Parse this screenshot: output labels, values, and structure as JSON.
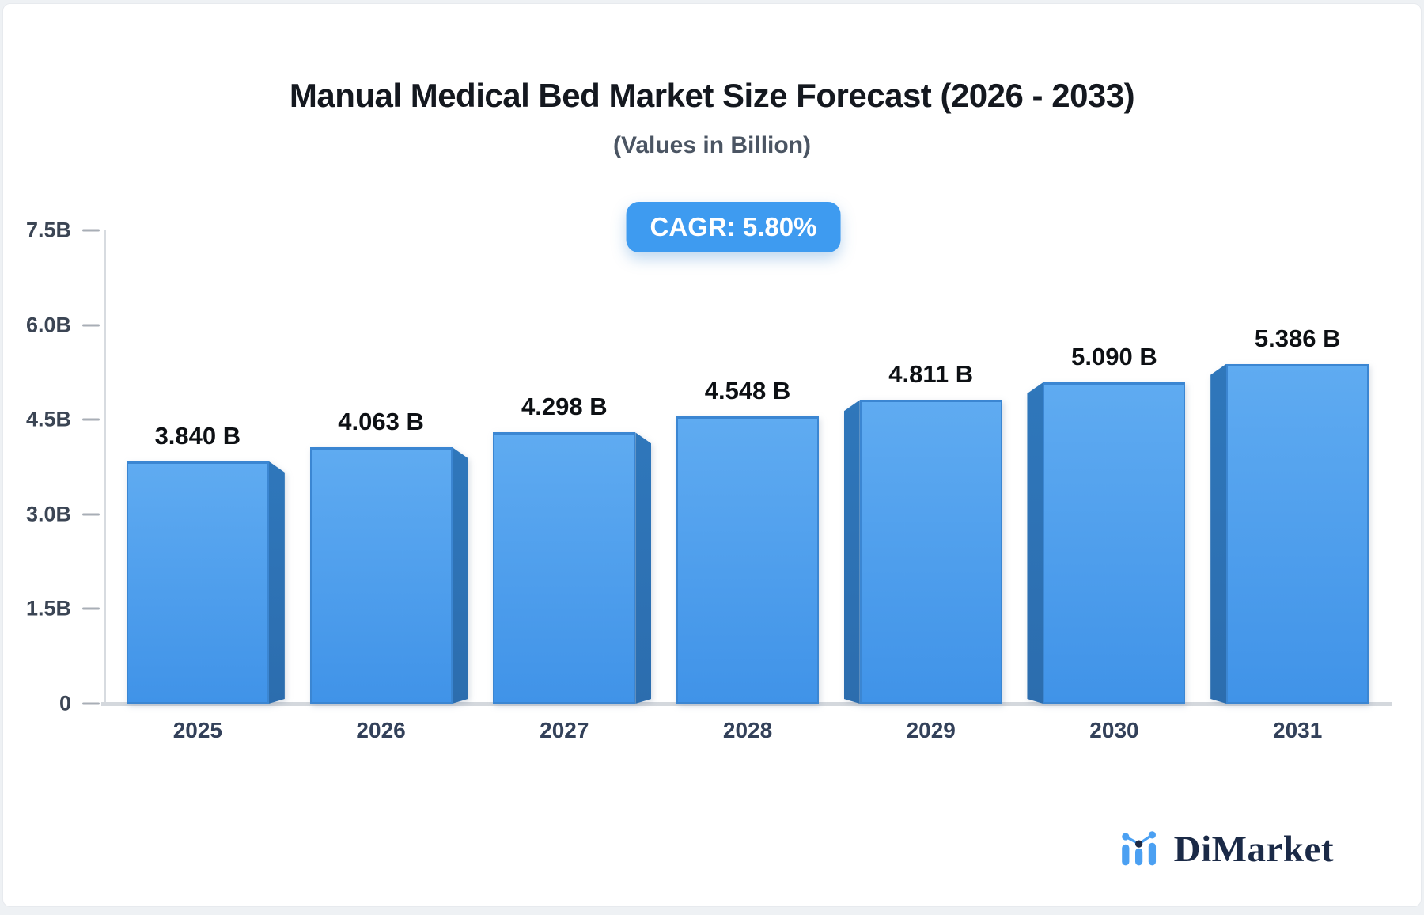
{
  "header": {
    "title": "Manual Medical Bed Market Size Forecast (2026 - 2033)",
    "subtitle": "(Values in Billion)"
  },
  "badge": {
    "label": "CAGR: 5.80%"
  },
  "chart_data": {
    "type": "bar",
    "title": "Manual Medical Bed Market Size Forecast (2026 - 2033)",
    "subtitle": "(Values in Billion)",
    "annotation": "CAGR: 5.80%",
    "categories": [
      "2025",
      "2026",
      "2027",
      "2028",
      "2029",
      "2030",
      "2031"
    ],
    "values": [
      3.84,
      4.063,
      4.298,
      4.548,
      4.811,
      5.09,
      5.386
    ],
    "value_labels": [
      "3.840 B",
      "4.063 B",
      "4.298 B",
      "4.548 B",
      "4.811 B",
      "5.090 B",
      "5.386 B"
    ],
    "xlabel": "",
    "ylabel": "",
    "ylim": [
      0,
      7.5
    ],
    "yticks": [
      0,
      1.5,
      3.0,
      4.5,
      6.0,
      7.5
    ],
    "ytick_labels": [
      "0",
      "1.5B",
      "3.0B",
      "4.5B",
      "6.0B",
      "7.5B"
    ],
    "grid": false,
    "legend": false,
    "bar_face_color": "#4DA0ED",
    "bar_side_color": "#2E74B8",
    "style": "3d-perspective-bars"
  },
  "branding": {
    "logo_text": "DiMarket",
    "logo_icon": "bar-chart-icon",
    "logo_text_color": "#1B2A47",
    "logo_icon_color": "#4BA0F2"
  },
  "colors": {
    "badge_bg": "#3E9BF0",
    "badge_text": "#FFFFFF",
    "axis_line": "#D7DBE0",
    "tick_text": "#3B4554",
    "background": "#FFFFFF"
  }
}
